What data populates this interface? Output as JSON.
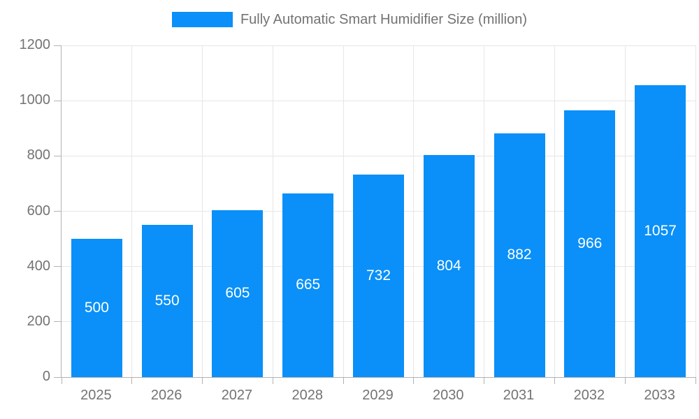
{
  "legend": {
    "label": "Fully Automatic Smart Humidifier Size (million)"
  },
  "colors": {
    "bar": "#0a90f8",
    "grid": "#e6e6e6",
    "axis": "#b3b3b3",
    "text": "#737373",
    "value_label": "#ffffff",
    "background": "#ffffff"
  },
  "chart_data": {
    "type": "bar",
    "title": "Fully Automatic Smart Humidifier Size (million)",
    "categories": [
      "2025",
      "2026",
      "2027",
      "2028",
      "2029",
      "2030",
      "2031",
      "2032",
      "2033"
    ],
    "values": [
      500,
      550,
      605,
      665,
      732,
      804,
      882,
      966,
      1057
    ],
    "xlabel": "",
    "ylabel": "",
    "ylim": [
      0,
      1200
    ],
    "ytick_step": 200,
    "ytick_labels": [
      "0",
      "200",
      "400",
      "600",
      "800",
      "1000",
      "1200"
    ],
    "grid": true,
    "legend_position": "top-center",
    "value_labels": "inside-center",
    "bar_color": "#0a90f8"
  }
}
